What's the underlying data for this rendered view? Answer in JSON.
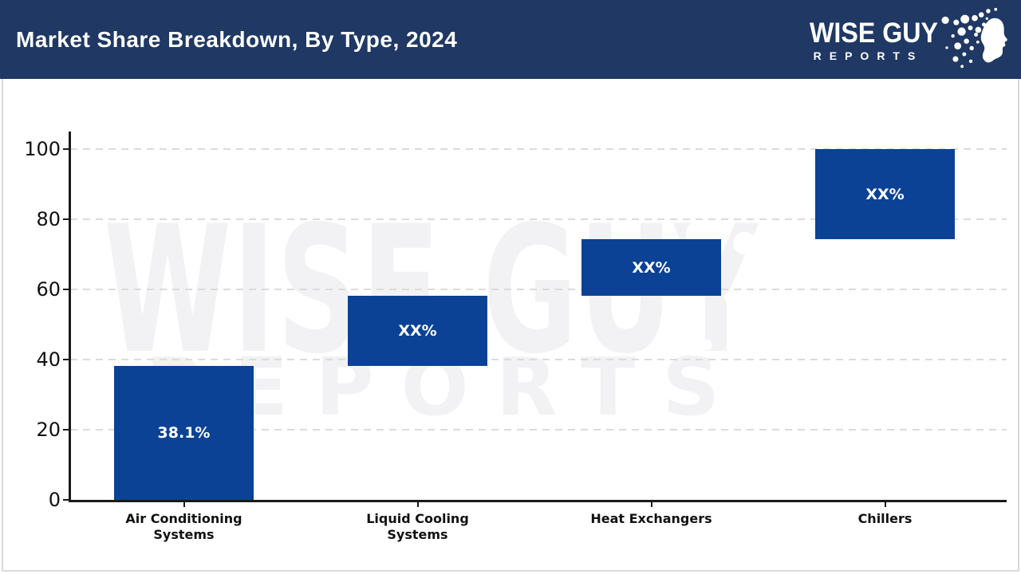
{
  "header": {
    "title": "Market Share Breakdown, By Type, 2024",
    "logo": {
      "wordmark": "WISE GUY",
      "subtext": "REPORTS"
    }
  },
  "watermark": {
    "line1": "WISE GUY",
    "line2": "REPORTS"
  },
  "colors": {
    "header_bg": "#1F3864",
    "bar": "#0B4295",
    "axis": "#1A1A1A",
    "grid": "#DBDBDB",
    "border": "#D9D9D9",
    "watermark": "#F2F2F4"
  },
  "chart_data": {
    "type": "bar",
    "variant": "waterfall",
    "title": "Market Share Breakdown, By Type, 2024",
    "xlabel": "",
    "ylabel": "",
    "ylim": [
      0,
      105
    ],
    "yticks": [
      0,
      20,
      40,
      60,
      80,
      100
    ],
    "grid": "horizontal-dashed",
    "legend": "none",
    "categories": [
      "Air Conditioning Systems",
      "Liquid Cooling Systems",
      "Heat Exchangers",
      "Chillers"
    ],
    "segments": [
      {
        "category": "Air Conditioning Systems",
        "category_display": "Air Conditioning\nSystems",
        "start": 0,
        "end": 38.1,
        "value": 38.1,
        "bar_label": "38.1%"
      },
      {
        "category": "Liquid Cooling Systems",
        "category_display": "Liquid Cooling\nSystems",
        "start": 38.1,
        "end": 58.1,
        "value": 20.0,
        "bar_label": "XX%"
      },
      {
        "category": "Heat Exchangers",
        "category_display": "Heat Exchangers",
        "start": 58.1,
        "end": 74.3,
        "value": 16.2,
        "bar_label": "XX%"
      },
      {
        "category": "Chillers",
        "category_display": "Chillers",
        "start": 74.3,
        "end": 100.0,
        "value": 25.7,
        "bar_label": "XX%"
      }
    ]
  }
}
